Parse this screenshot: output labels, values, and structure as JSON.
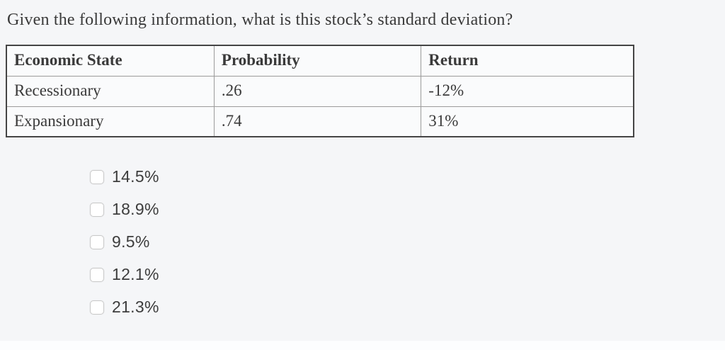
{
  "question": {
    "text": "Given the following information, what is this stock’s standard deviation?"
  },
  "table": {
    "headers": [
      "Economic State",
      "Probability",
      "Return"
    ],
    "rows": [
      [
        "Recessionary",
        ".26",
        "-12%"
      ],
      [
        "Expansionary",
        ".74",
        "31%"
      ]
    ]
  },
  "options": [
    {
      "label": "14.5%",
      "checked": false
    },
    {
      "label": "18.9%",
      "checked": false
    },
    {
      "label": "9.5%",
      "checked": false
    },
    {
      "label": "12.1%",
      "checked": false
    },
    {
      "label": "21.3%",
      "checked": false
    }
  ],
  "colors": {
    "page_background": "#f5f6f8",
    "table_background": "#fafbfc",
    "table_outer_border": "#454545",
    "table_inner_border": "#9b9b9b",
    "text": "#3a3a3a",
    "option_text": "#3d3d3d",
    "checkbox_border": "#c9c9c9",
    "checkbox_fill": "#ffffff"
  }
}
